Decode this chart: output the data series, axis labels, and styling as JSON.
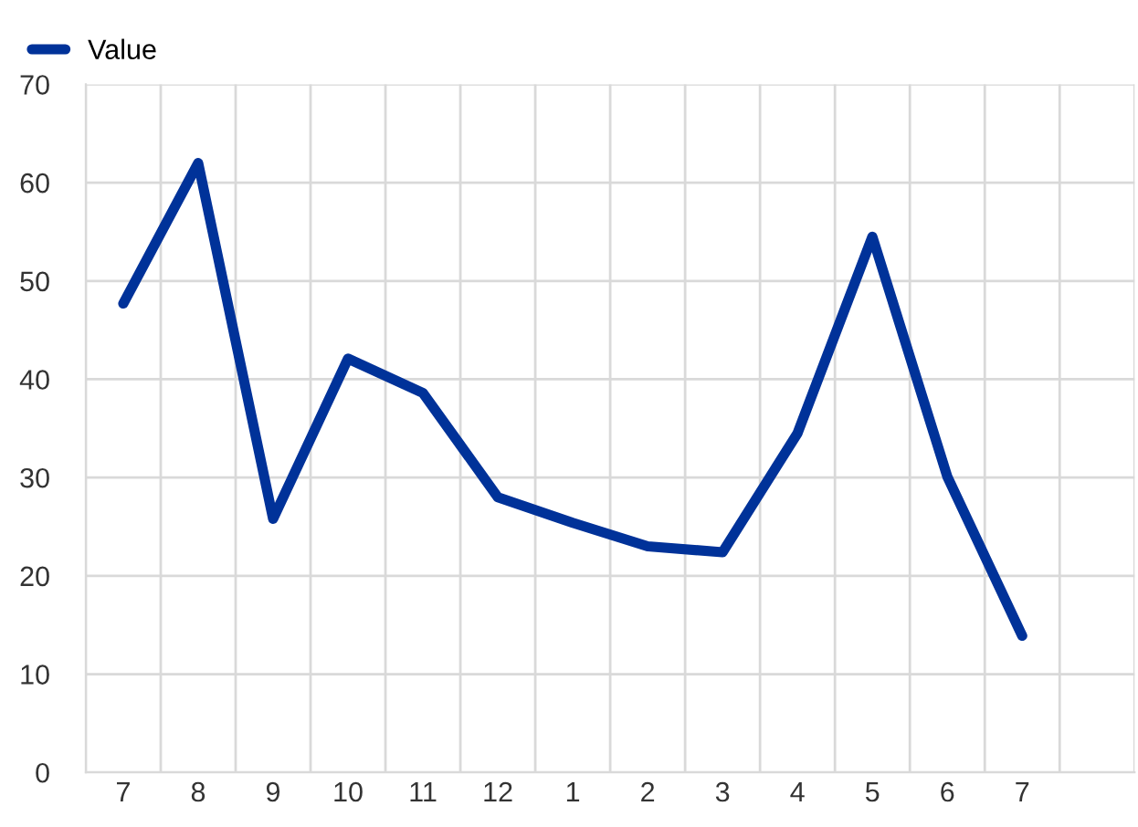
{
  "chart_data": {
    "type": "line",
    "categories": [
      "7",
      "8",
      "9",
      "10",
      "11",
      "12",
      "1",
      "2",
      "3",
      "4",
      "5",
      "6",
      "7",
      null
    ],
    "series": [
      {
        "name": "Value",
        "color": "#003299",
        "values": [
          47.7,
          62,
          25.8,
          42.1,
          38.6,
          28.0,
          25.4,
          23.0,
          22.4,
          34.5,
          54.5,
          30.1,
          13.9,
          null
        ]
      }
    ],
    "ylim": [
      0,
      70
    ],
    "yticks": [
      0,
      10,
      20,
      30,
      40,
      50,
      60,
      70
    ],
    "grid": true,
    "legend": "top left",
    "marker": "none",
    "line_style": "solid"
  }
}
